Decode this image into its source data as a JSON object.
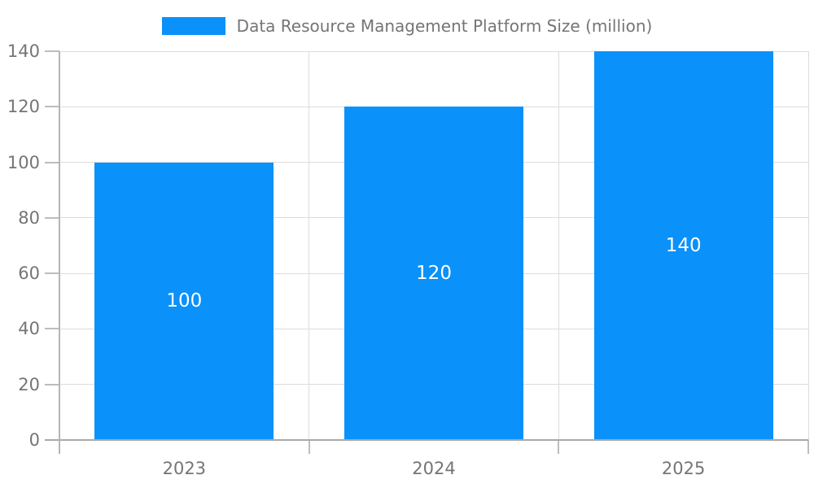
{
  "chart_data": {
    "type": "bar",
    "title": "Data Resource Management Platform Size (million)",
    "categories": [
      "2023",
      "2024",
      "2025"
    ],
    "values": [
      100,
      120,
      140
    ],
    "series": [
      {
        "name": "Data Resource Management Platform Size (million)",
        "values": [
          100,
          120,
          140
        ]
      }
    ],
    "data_labels": [
      "100",
      "120",
      "140"
    ],
    "xlabel": "",
    "ylabel": "",
    "ylim": [
      0,
      140
    ],
    "ytick_step": 20,
    "yticks": [
      "0",
      "20",
      "40",
      "60",
      "80",
      "100",
      "120",
      "140"
    ],
    "grid": true,
    "legend_position": "top"
  },
  "legend": {
    "label": "Data Resource Management Platform Size (million)"
  },
  "colors": {
    "bar": "#0a91fa",
    "axis_text": "#757575",
    "legend_text": "#757575",
    "data_label": "#ffffff",
    "gridline": "#dcdcdc",
    "axis_line_h": "#a9a9a9",
    "axis_line_v": "#b5b5b5",
    "tick": "#bdbdbd",
    "background": "#ffffff"
  }
}
